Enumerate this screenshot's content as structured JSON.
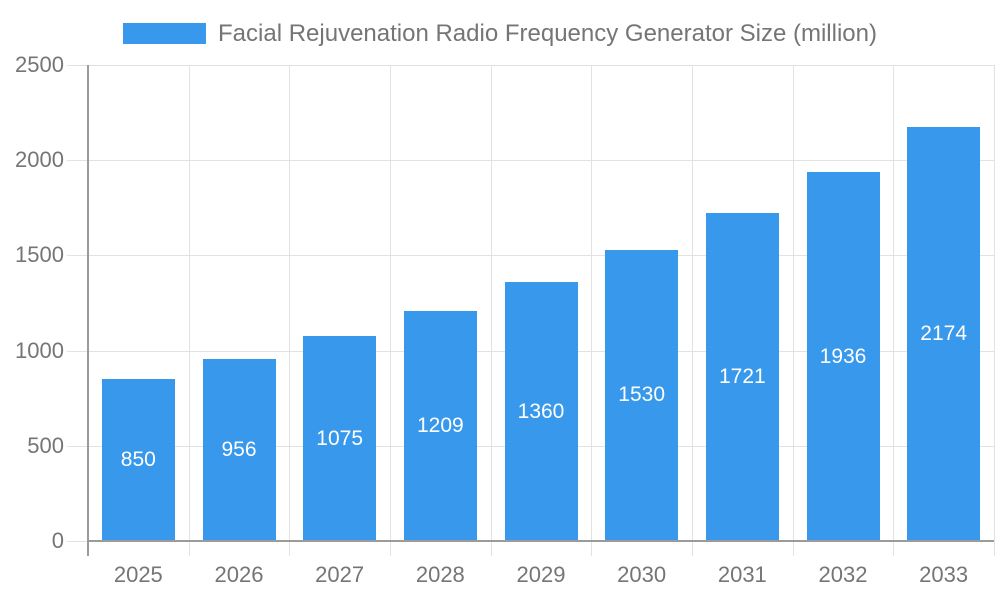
{
  "chart_data": {
    "type": "bar",
    "title": "Facial Rejuvenation Radio Frequency Generator Size (million)",
    "categories": [
      "2025",
      "2026",
      "2027",
      "2028",
      "2029",
      "2030",
      "2031",
      "2032",
      "2033"
    ],
    "values": [
      850,
      956,
      1075,
      1209,
      1360,
      1530,
      1721,
      1936,
      2174
    ],
    "series": [
      {
        "name": "Facial Rejuvenation Radio Frequency Generator Size (million)",
        "values": [
          850,
          956,
          1075,
          1209,
          1360,
          1530,
          1721,
          1936,
          2174
        ]
      }
    ],
    "xlabel": "",
    "ylabel": "",
    "ylim": [
      0,
      2500
    ],
    "yticks": [
      0,
      500,
      1000,
      1500,
      2000,
      2500
    ],
    "grid": true,
    "legend_position": "top-center",
    "bar_value_labels": "inside-center",
    "colors": {
      "bar": "#3899EC",
      "bar_label_text": "#FFFFFF",
      "grid_line": "#E2E2E2",
      "axis_line": "#9B9B9B",
      "tick_text": "#757575",
      "legend_text": "#757575",
      "background": "#FFFFFF"
    }
  },
  "legend": {
    "label": "Facial Rejuvenation Radio Frequency Generator Size (million)"
  }
}
